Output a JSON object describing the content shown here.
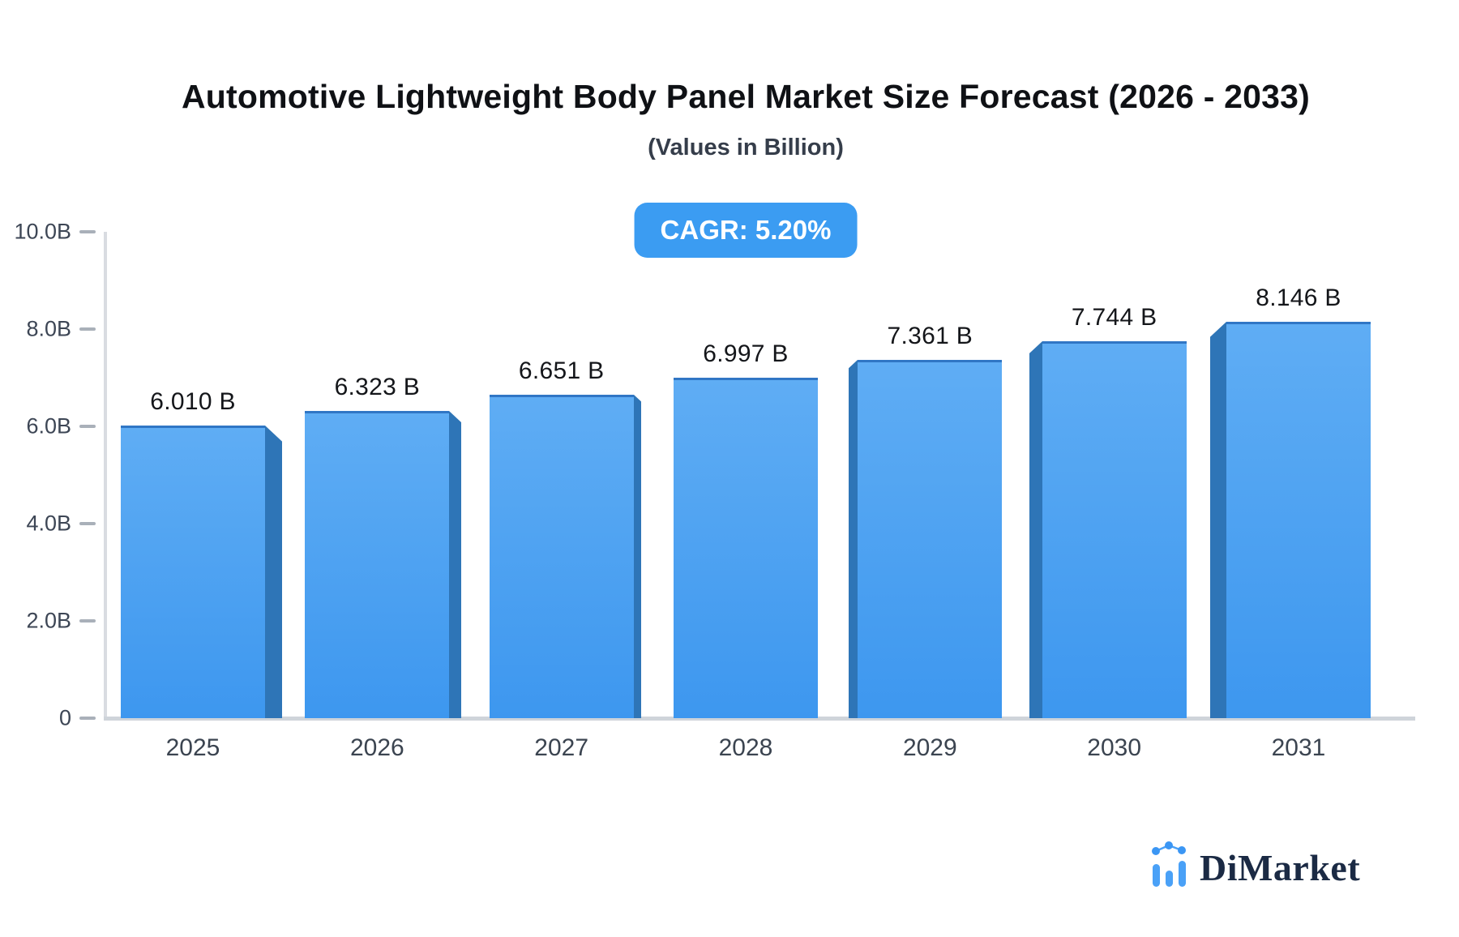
{
  "title": "Automotive Lightweight Body Panel Market Size Forecast (2026 - 2033)",
  "subtitle": "(Values in Billion)",
  "badge": {
    "label": "CAGR: 5.20%",
    "bg": "#3b9cf2",
    "text_color": "#ffffff"
  },
  "chart_data": {
    "type": "bar",
    "categories": [
      "2025",
      "2026",
      "2027",
      "2028",
      "2029",
      "2030",
      "2031"
    ],
    "values": [
      6.01,
      6.323,
      6.651,
      6.997,
      7.361,
      7.744,
      8.146
    ],
    "value_labels": [
      "6.010 B",
      "6.323 B",
      "6.651 B",
      "6.997 B",
      "7.361 B",
      "7.744 B",
      "8.146 B"
    ],
    "y_ticks": [
      "10.0B",
      "8.0B",
      "6.0B",
      "4.0B",
      "2.0B",
      "0"
    ],
    "ylim": [
      0,
      10
    ],
    "xlabel": "",
    "ylabel": "",
    "grid": false,
    "legend": "none",
    "style": "3d-perspective-bars",
    "bar_color_top": "#5fadf4",
    "bar_color_bottom": "#3d97ef",
    "bar_top_edge_color": "#3076c5",
    "bar_side_color": "#2e75b7",
    "side_widths": [
      21,
      15,
      9,
      0,
      11,
      16,
      20
    ],
    "side_direction": [
      "right",
      "right",
      "right",
      "none",
      "left",
      "left",
      "left"
    ]
  },
  "logo": {
    "text": "DiMarket",
    "icon": "mini-bar-chart-icon",
    "icon_color": "#4aa1f7",
    "text_color": "#1b2a44"
  }
}
